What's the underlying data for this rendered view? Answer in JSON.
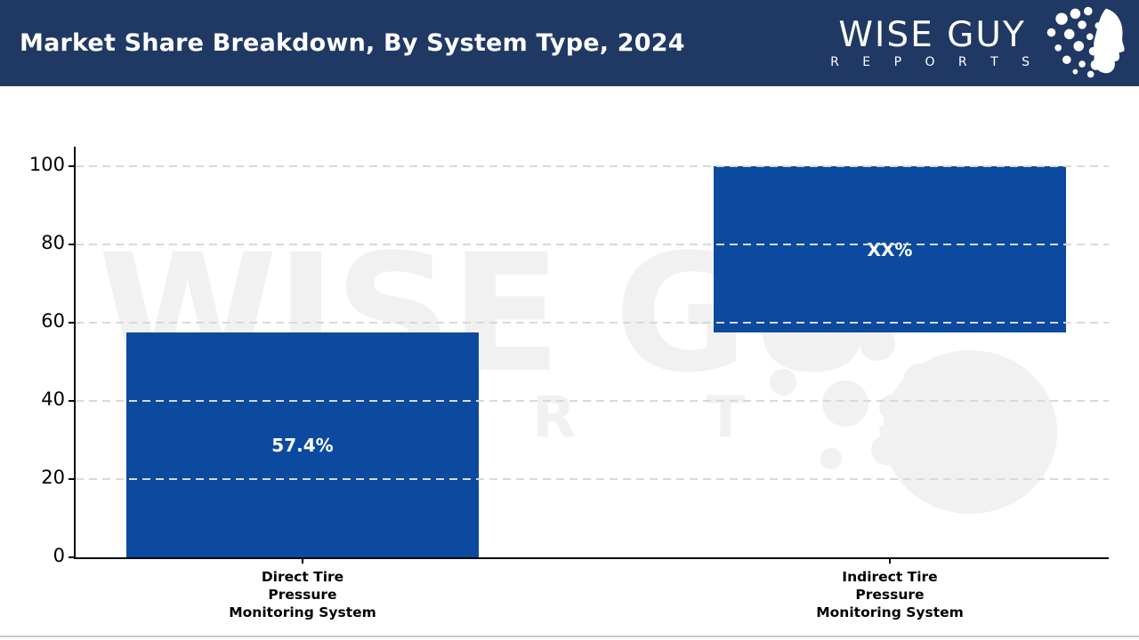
{
  "header": {
    "title": "Market Share Breakdown, By System Type, 2024",
    "background_color": "#1f3864",
    "logo": {
      "brand_line1": "WISE GUY",
      "brand_line2": "R E P O R T S"
    }
  },
  "watermark": {
    "text_large": "WISE GU",
    "text_small": "R T S"
  },
  "chart_data": {
    "type": "bar",
    "title": "Market Share Breakdown, By System Type, 2024",
    "categories": [
      [
        "Direct Tire",
        "Pressure",
        "Monitoring System"
      ],
      [
        "Indirect Tire",
        "Pressure",
        "Monitoring System"
      ]
    ],
    "bars": [
      {
        "label": "57.4%",
        "value": 57.4,
        "start": 0,
        "end": 57.4
      },
      {
        "label": "XX%",
        "value": 42.6,
        "start": 57.4,
        "end": 100
      }
    ],
    "ylim": [
      0,
      100
    ],
    "yticks": [
      0,
      20,
      40,
      60,
      80,
      100
    ],
    "grid": {
      "horizontal": true,
      "style": "dashed",
      "color": "#d9d9d9"
    },
    "bar_color": "#0b4a9e",
    "bar_label_color": "#ffffff",
    "xlabel": "",
    "ylabel": "",
    "legend": null
  }
}
